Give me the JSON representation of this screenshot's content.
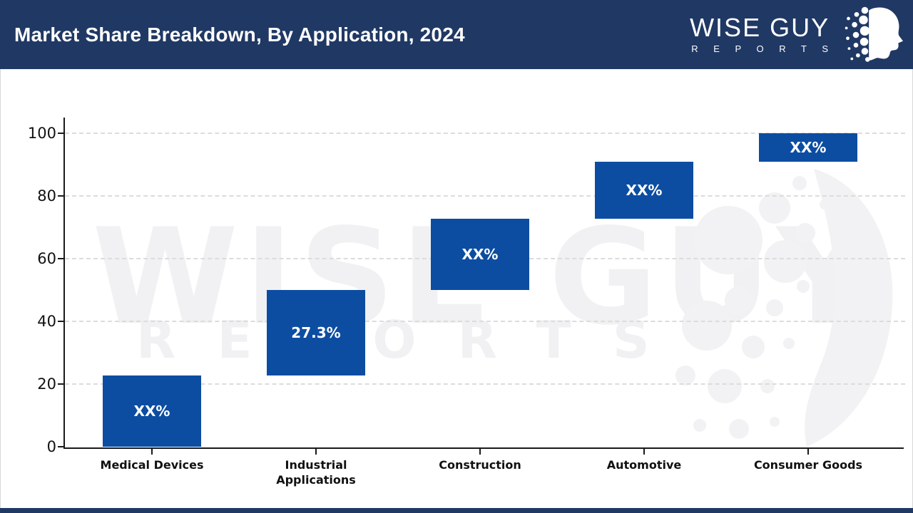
{
  "header": {
    "title": "Market Share Breakdown, By Application, 2024",
    "logo": {
      "line1": "WISE GUY",
      "line2": "R E P O R T S"
    }
  },
  "watermark": {
    "line1": "WISE GUY",
    "line2": "REPORTS"
  },
  "chart_data": {
    "type": "bar",
    "subtype": "waterfall",
    "title": "Market Share Breakdown, By Application, 2024",
    "categories": [
      "Medical Devices",
      "Industrial Applications",
      "Construction",
      "Automotive",
      "Consumer Goods"
    ],
    "segments": [
      {
        "category": "Medical Devices",
        "start": 0,
        "end": 22.7,
        "value": 22.7,
        "label": "XX%"
      },
      {
        "category": "Industrial Applications",
        "start": 22.7,
        "end": 50.0,
        "value": 27.3,
        "label": "27.3%"
      },
      {
        "category": "Construction",
        "start": 50.0,
        "end": 72.7,
        "value": 22.7,
        "label": "XX%"
      },
      {
        "category": "Automotive",
        "start": 72.7,
        "end": 90.9,
        "value": 18.2,
        "label": "XX%"
      },
      {
        "category": "Consumer Goods",
        "start": 90.9,
        "end": 100,
        "value": 9.1,
        "label": "XX%"
      }
    ],
    "yticks": [
      0,
      20,
      40,
      60,
      80,
      100
    ],
    "ylim": [
      0,
      105
    ],
    "grid": true,
    "legend": false,
    "xlabel": "",
    "ylabel": ""
  },
  "colors": {
    "header_bg": "#203864",
    "footer_bg": "#203864",
    "bar": "#0c4da2",
    "bar_label": "#ffffff",
    "gridline": "#dcdcdc",
    "axis": "#1a1a1a",
    "tick_text": "#111111",
    "watermark": "#f1f1f3"
  }
}
